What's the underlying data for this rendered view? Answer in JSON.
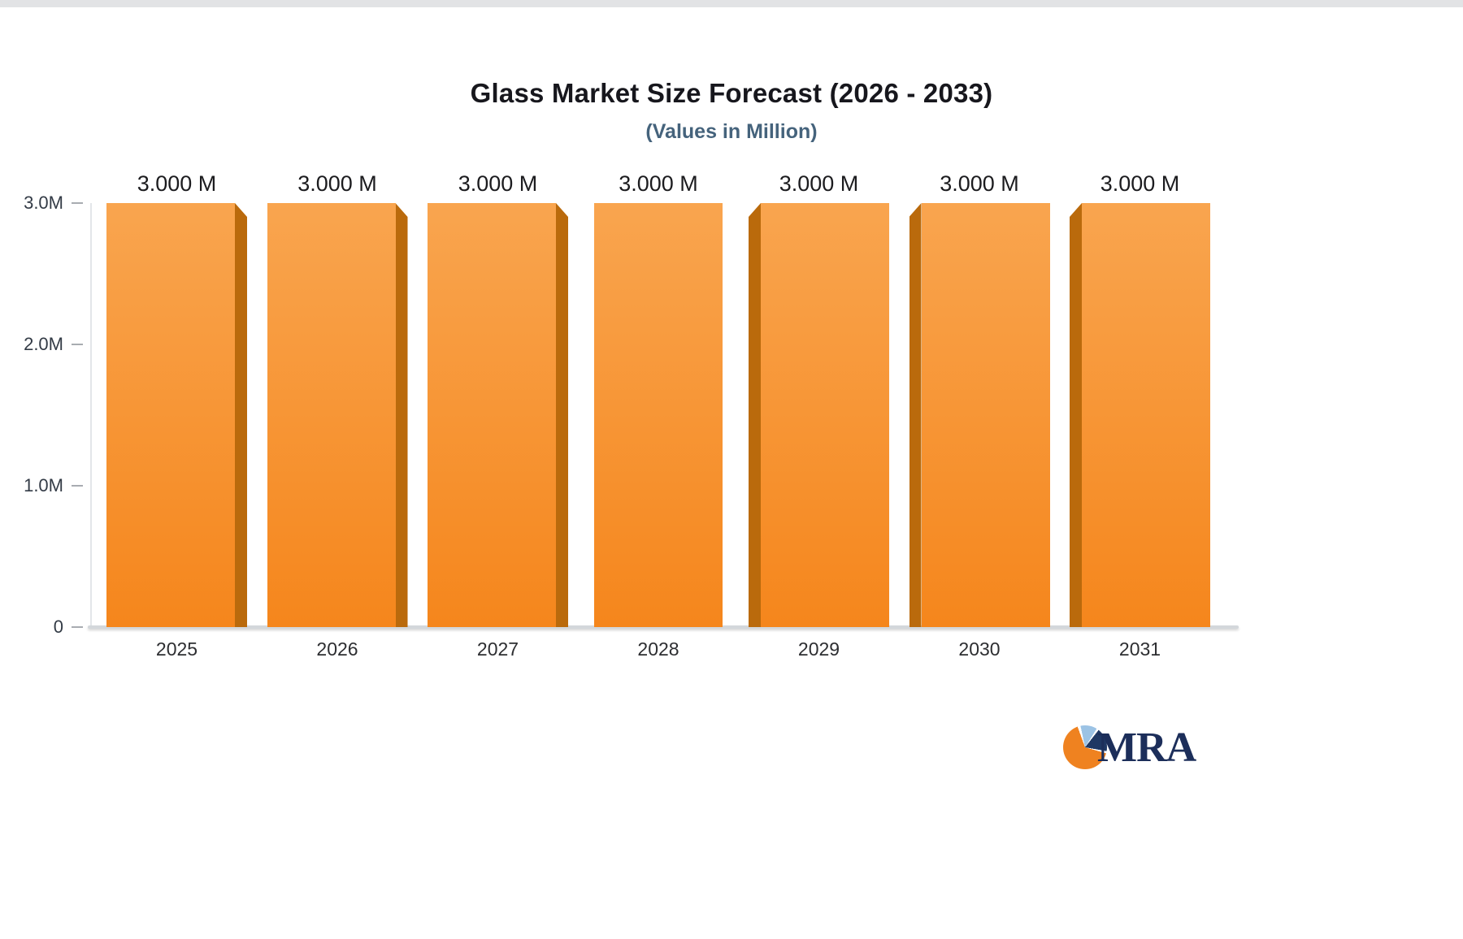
{
  "chart_data": {
    "type": "bar",
    "title": "Glass Market Size Forecast (2026 - 2033)",
    "subtitle": "(Values in Million)",
    "categories": [
      "2025",
      "2026",
      "2027",
      "2028",
      "2029",
      "2030",
      "2031"
    ],
    "values": [
      3.0,
      3.0,
      3.0,
      3.0,
      3.0,
      3.0,
      3.0
    ],
    "bar_labels": [
      "3.000 M",
      "3.000 M",
      "3.000 M",
      "3.000 M",
      "3.000 M",
      "3.000 M",
      "3.000 M"
    ],
    "ylim": [
      0,
      3.0
    ],
    "yticks": [
      {
        "label": "0",
        "value": 0
      },
      {
        "label": "1.0M",
        "value": 1.0
      },
      {
        "label": "2.0M",
        "value": 2.0
      },
      {
        "label": "3.0M",
        "value": 3.0
      }
    ],
    "grid": false,
    "legend": "none",
    "bar_color_top": "#F9A54F",
    "bar_color_bottom": "#F5861C",
    "bar_side_color": "#BA6A0C",
    "axis_color": "#D3D7DB",
    "tick_label_color": "#333B46",
    "title_color": "#17171D",
    "subtitle_color": "#45637C"
  },
  "logo": {
    "text": "MRA"
  }
}
